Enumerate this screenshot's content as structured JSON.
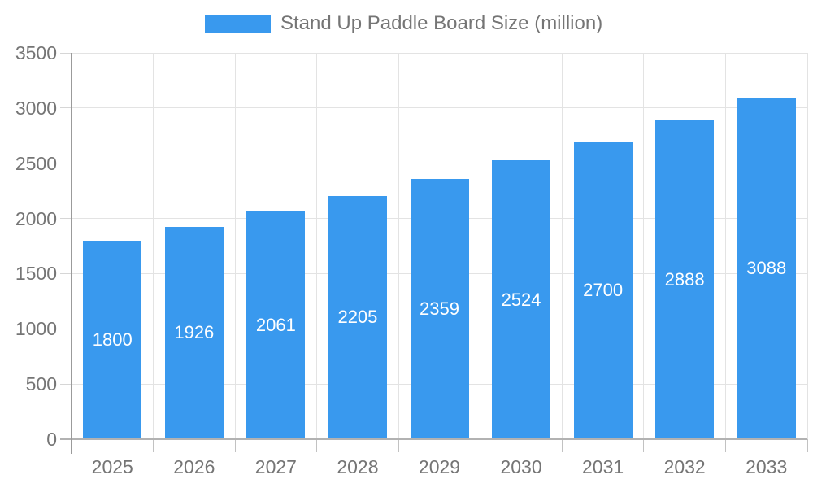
{
  "chart_data": {
    "type": "bar",
    "title": "Stand Up Paddle Board Size (million)",
    "legend": [
      "Stand Up Paddle Board Size (million)"
    ],
    "legend_position": "top",
    "categories": [
      "2025",
      "2026",
      "2027",
      "2028",
      "2029",
      "2030",
      "2031",
      "2032",
      "2033"
    ],
    "values": [
      1800,
      1926,
      2061,
      2205,
      2359,
      2524,
      2700,
      2888,
      3088
    ],
    "xlabel": "",
    "ylabel": "",
    "ylim": [
      0,
      3500
    ],
    "ytick_step": 500,
    "yticks": [
      0,
      500,
      1000,
      1500,
      2000,
      2500,
      3000,
      3500
    ],
    "grid": true,
    "value_labels": "inside-center",
    "bar_color": "#3999EE",
    "value_label_color": "#FFFFFF",
    "axis_text_color": "#757575"
  }
}
